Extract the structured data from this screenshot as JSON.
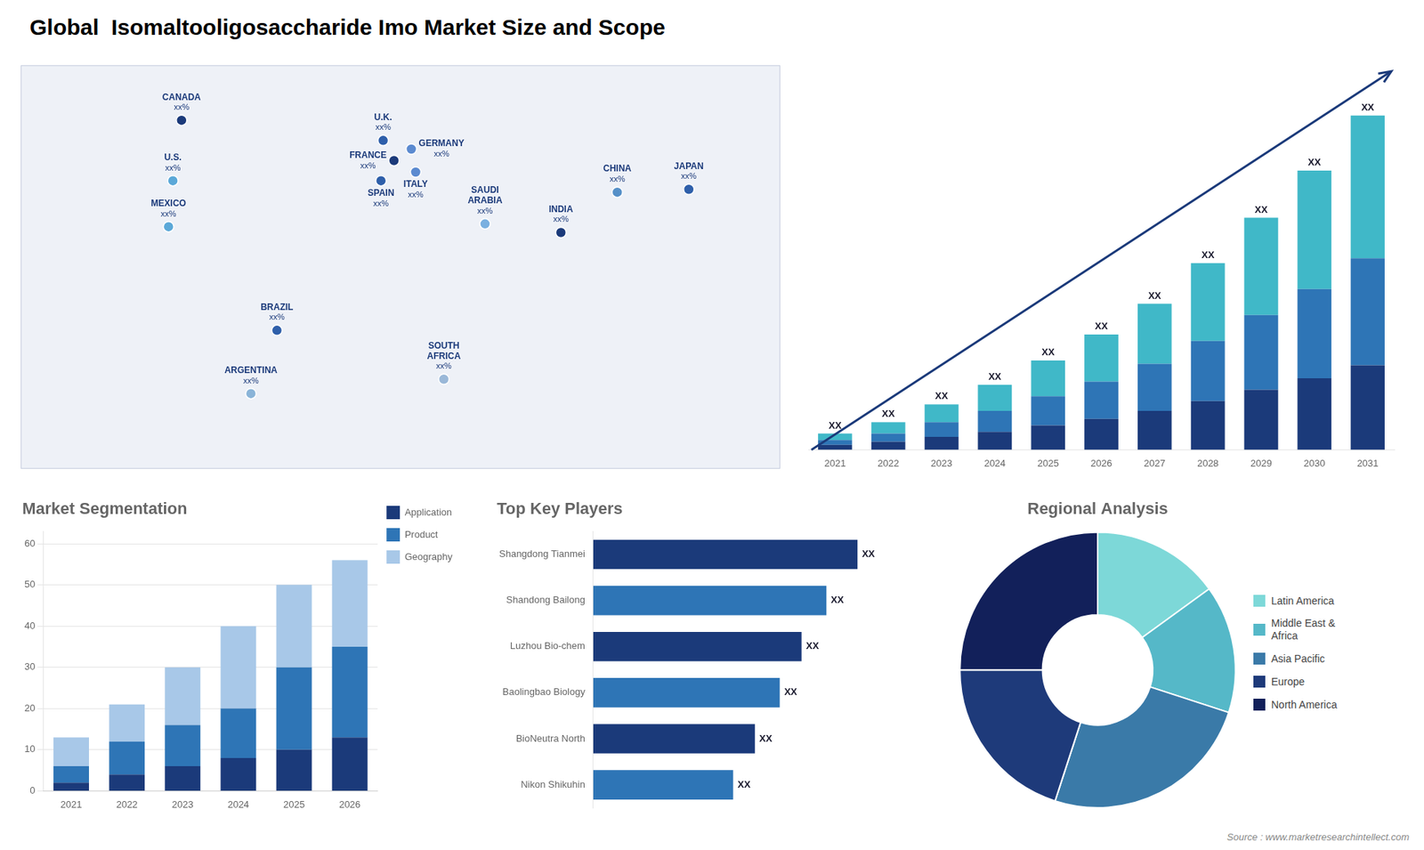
{
  "title": "Global  Isomaltooligosaccharide Imo Market Size and Scope",
  "annotations": [
    "Source : www.marketresearchintellect.com"
  ],
  "chart_data": [
    {
      "type": "scatter",
      "labels": [
        "CANADA",
        "U.S.",
        "MEXICO",
        "BRAZIL",
        "ARGENTINA",
        "U.K.",
        "FRANCE",
        "SPAIN",
        "GERMANY",
        "ITALY",
        "SAUDI\nARABIA",
        "SOUTH\nAFRICA",
        "CHINA",
        "INDIA",
        "JAPAN"
      ],
      "x": [
        -96,
        -100,
        -102,
        -52,
        -64,
        -3,
        2,
        -4,
        10,
        12,
        44,
        25,
        105,
        79,
        138
      ],
      "values": [
        61,
        40,
        24,
        -12,
        -34,
        54,
        47,
        40,
        51,
        43,
        25,
        -29,
        36,
        22,
        37
      ],
      "value_labels": [
        "xx%",
        "xx%",
        "xx%",
        "xx%",
        "xx%",
        "xx%",
        "xx%",
        "xx%",
        "xx%",
        "xx%",
        "xx%",
        "xx%",
        "xx%",
        "xx%",
        "xx%"
      ],
      "colors": [
        "#1b3a7a",
        "#5ba8d8",
        "#5ba8d8",
        "#2e5faa",
        "#8ab4d8",
        "#2e5faa",
        "#1b3a7a",
        "#2e5faa",
        "#5b8ad0",
        "#5b8ad0",
        "#7ab0e0",
        "#9ab8d8",
        "#5590c8",
        "#1b3a7a",
        "#2e5faa"
      ],
      "xlim": [
        -170,
        180
      ],
      "ylim": [
        -60,
        80
      ],
      "tick_labels": false,
      "grid": false
    },
    {
      "type": "bar",
      "categories": [
        "2021",
        "2022",
        "2023",
        "2024",
        "2025",
        "2026",
        "2027",
        "2028",
        "2029",
        "2030",
        "2031"
      ],
      "series": [
        {
          "color": "#1b3a7a",
          "values": [
            1.5,
            2.5,
            4.0,
            5.5,
            7.5,
            9.5,
            12.0,
            15.0,
            18.5,
            22.0,
            26.0
          ]
        },
        {
          "color": "#2e75b6",
          "values": [
            1.5,
            2.5,
            4.5,
            6.5,
            9.0,
            11.5,
            14.5,
            18.5,
            23.0,
            27.5,
            33.0
          ]
        },
        {
          "color": "#40b8c8",
          "values": [
            2.0,
            3.5,
            5.5,
            8.0,
            11.0,
            14.5,
            18.5,
            24.0,
            30.0,
            36.5,
            44.0
          ]
        }
      ],
      "stacked": true,
      "data_labels": true,
      "value_labels": [
        "XX",
        "XX",
        "XX",
        "XX",
        "XX",
        "XX",
        "XX",
        "XX",
        "XX",
        "XX",
        "XX"
      ],
      "ylim": [
        0,
        118
      ],
      "tick_labels": "x",
      "grid": false
    },
    {
      "type": "bar",
      "title": "Market Segmentation",
      "categories": [
        "2021",
        "2022",
        "2023",
        "2024",
        "2025",
        "2026"
      ],
      "series": [
        {
          "name": "Application",
          "color": "#1b3a7a",
          "values": [
            2,
            4,
            6,
            8,
            10,
            13
          ]
        },
        {
          "name": "Product",
          "color": "#2e75b6",
          "values": [
            4,
            8,
            10,
            12,
            20,
            22
          ]
        },
        {
          "name": "Geography",
          "color": "#a8c8e8",
          "values": [
            7,
            9,
            14,
            20,
            20,
            21
          ]
        }
      ],
      "stacked": true,
      "ylim": [
        0,
        63
      ],
      "yticks": [
        0,
        10,
        20,
        30,
        40,
        50,
        60
      ],
      "grid": true,
      "legend": "right"
    },
    {
      "type": "bar",
      "title": "Top Key Players",
      "orientation": "horizontal",
      "categories": [
        "Shangdong Tianmei",
        "Shandong Bailong",
        "Luzhou Bio-chem",
        "Baolingbao Biology",
        "BioNeutra North",
        "Nikon Shikuhin"
      ],
      "values": [
        85,
        75,
        67,
        60,
        52,
        45
      ],
      "colors": [
        "#1b3a7a",
        "#2e75b6",
        "#1b3a7a",
        "#2e75b6",
        "#1b3a7a",
        "#2e75b6"
      ],
      "data_labels": true,
      "value_labels": [
        "XX",
        "XX",
        "XX",
        "XX",
        "XX",
        "XX"
      ],
      "xlim": [
        0,
        105
      ],
      "tick_labels": "y",
      "grid": false
    },
    {
      "type": "doughnut",
      "title": "Regional Analysis",
      "categories": [
        "Latin America",
        "Middle East &\nAfrica",
        "Asia Pacific",
        "Europe",
        "North America"
      ],
      "values": [
        15,
        15,
        25,
        20,
        25
      ],
      "colors": [
        "#7dd8d8",
        "#55b8c8",
        "#3a7aa8",
        "#1e3a7a",
        "#12205a"
      ],
      "legend": "right"
    }
  ]
}
